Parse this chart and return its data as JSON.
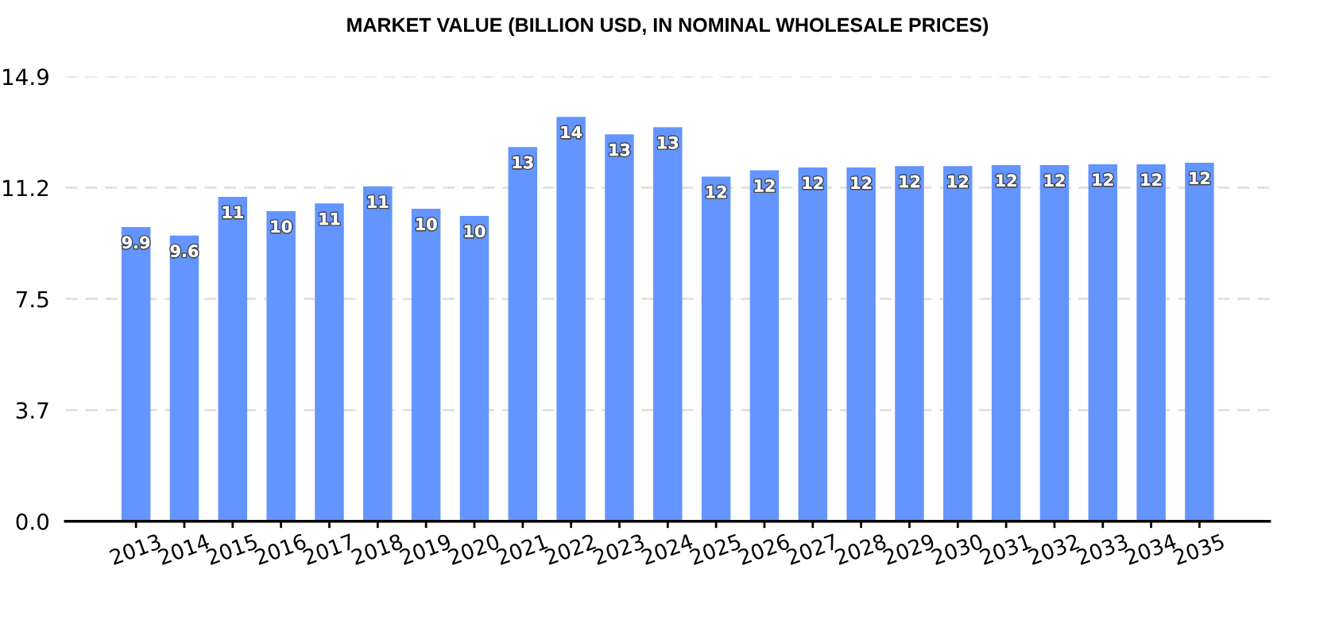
{
  "chart_data": {
    "type": "bar",
    "title": "MARKET VALUE (BILLION USD, IN NOMINAL WHOLESALE PRICES)",
    "categories": [
      "2013",
      "2014",
      "2015",
      "2016",
      "2017",
      "2018",
      "2019",
      "2020",
      "2021",
      "2022",
      "2023",
      "2024",
      "2025",
      "2026",
      "2027",
      "2028",
      "2029",
      "2030",
      "2031",
      "2032",
      "2033",
      "2034",
      "2035"
    ],
    "values": [
      9.86,
      9.57,
      10.87,
      10.39,
      10.65,
      11.22,
      10.47,
      10.23,
      12.54,
      13.55,
      12.96,
      13.2,
      11.55,
      11.76,
      11.85,
      11.85,
      11.9,
      11.9,
      11.93,
      11.93,
      11.96,
      11.96,
      12.01
    ],
    "value_labels": [
      "9.9",
      "9.6",
      "11",
      "10",
      "11",
      "11",
      "10",
      "10",
      "13",
      "14",
      "13",
      "13",
      "12",
      "12",
      "12",
      "12",
      "12",
      "12",
      "12",
      "12",
      "12",
      "12",
      "12"
    ],
    "color": "#6495ff",
    "ylim": [
      0,
      14.9
    ],
    "yticks": [
      {
        "value": 0,
        "label": "0.0"
      },
      {
        "value": 3.725,
        "label": "3.7"
      },
      {
        "value": 7.45,
        "label": "7.5"
      },
      {
        "value": 11.175,
        "label": "11.2"
      },
      14.9
    ],
    "grid": "y"
  }
}
